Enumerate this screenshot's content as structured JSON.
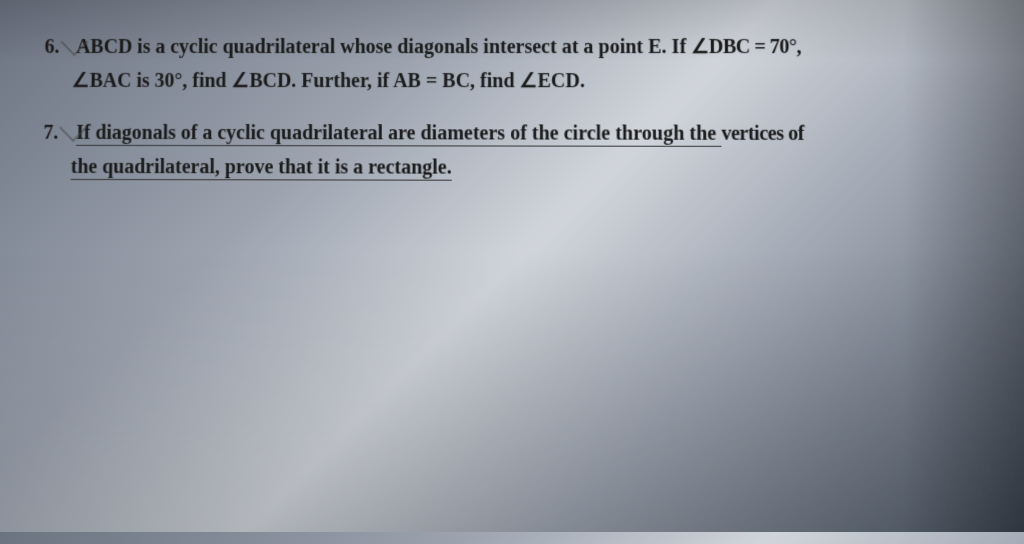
{
  "problems": {
    "six": {
      "number": "6.",
      "line1_part1": "ABCD is a cyclic quadrilateral whose diagonals intersect at a point E. If ",
      "line1_angle": "∠DBC = 70°,",
      "line2": "∠BAC is 30°, find ∠BCD. Further, if AB = BC, find ∠ECD."
    },
    "seven": {
      "number": "7.",
      "line1_underlined": "If diagonals of a cyclic quadrilateral are diameters of the circle through the ",
      "line1_end": "vertices of",
      "line2_underlined": "the quadrilateral, prove that it is a rectangle."
    }
  },
  "styling": {
    "text_color": "#1a1a1a",
    "background_gradient_start": "#6b7280",
    "background_gradient_mid": "#d1d5db",
    "background_gradient_end": "#4b5563",
    "underline_color": "#333333",
    "font_family": "Georgia, Times New Roman, serif",
    "font_size_body": 20,
    "font_weight": 600,
    "line_height": 1.7
  }
}
